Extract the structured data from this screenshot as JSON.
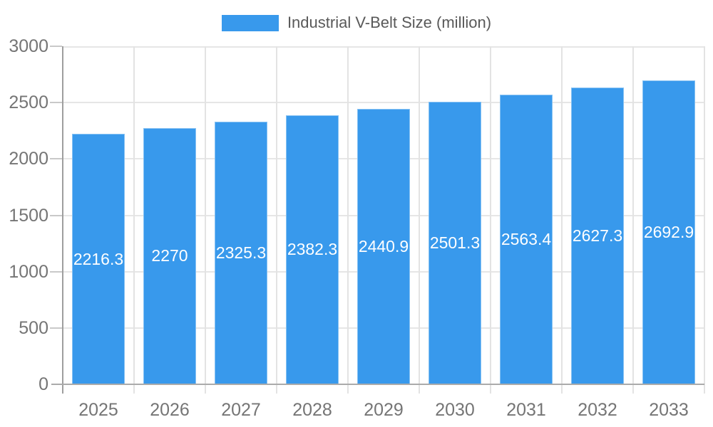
{
  "legend": {
    "label": "Industrial V-Belt Size (million)"
  },
  "chart_data": {
    "type": "bar",
    "title": "Industrial V-Belt Size (million)",
    "categories": [
      "2025",
      "2026",
      "2027",
      "2028",
      "2029",
      "2030",
      "2031",
      "2032",
      "2033"
    ],
    "series": [
      {
        "name": "Industrial V-Belt Size (million)",
        "values": [
          2216.3,
          2270,
          2325.3,
          2382.3,
          2440.9,
          2501.3,
          2563.4,
          2627.3,
          2692.9
        ]
      }
    ],
    "value_labels": [
      "2216.3",
      "2270",
      "2325.3",
      "2382.3",
      "2440.9",
      "2501.3",
      "2563.4",
      "2627.3",
      "2692.9"
    ],
    "xlabel": "",
    "ylabel": "",
    "ylim": [
      0,
      3000
    ],
    "y_ticks": [
      0,
      500,
      1000,
      1500,
      2000,
      2500,
      3000
    ],
    "grid": true,
    "legend_position": "top",
    "colors": {
      "bar_fill": "#3899EC",
      "bar_value_label": "#FFFFFF",
      "axis_tick_label": "#757575",
      "legend_text": "#595959",
      "gridline": "#E6E6E6",
      "y_axis_line": "#9E9E9E",
      "x_axis_line": "#ABABAB"
    }
  }
}
